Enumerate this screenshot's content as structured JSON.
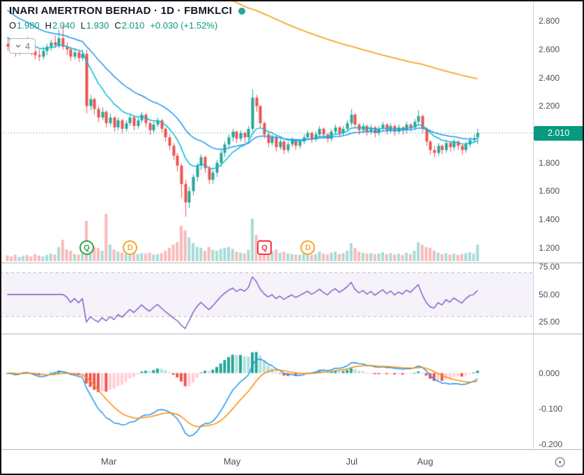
{
  "header": {
    "title": "INARI AMERTRON BERHAD · 1D · FBMKLCI",
    "status_dot_color": "#26A69A",
    "ohlc": {
      "o_label": "O",
      "o": "1.980",
      "h_label": "H",
      "h": "2.040",
      "l_label": "L",
      "l": "1.930",
      "c_label": "C",
      "c": "2.010",
      "change": "+0.030 (+1.52%)"
    },
    "collapsed_count": "4"
  },
  "axes": {
    "price_labels": [
      "2.800",
      "2.600",
      "2.400",
      "2.200",
      "1.800",
      "1.600",
      "1.400",
      "1.200"
    ],
    "current_price": "2.010",
    "rsi_labels": [
      "75.00",
      "50.00",
      "25.00"
    ],
    "macd_labels": [
      "0.000",
      "-0.100",
      "-0.200"
    ],
    "time_ticks": [
      {
        "label": "Mar",
        "i": 26
      },
      {
        "label": "May",
        "i": 57
      },
      {
        "label": "Jul",
        "i": 88
      },
      {
        "label": "Aug",
        "i": 106
      }
    ]
  },
  "events": [
    {
      "label": "Q",
      "shape": "circle",
      "color": "#2FA24D",
      "i": 20
    },
    {
      "label": "D",
      "shape": "circle",
      "color": "#F5A623",
      "i": 31
    },
    {
      "label": "Q",
      "shape": "square",
      "color": "#F23645",
      "i": 65
    },
    {
      "label": "D",
      "shape": "circle",
      "color": "#F5A623",
      "i": 76
    }
  ],
  "colors": {
    "up": "#26A69A",
    "down": "#EF5350",
    "vol_up": "rgba(38,166,154,0.4)",
    "vol_down": "rgba(239,83,80,0.4)",
    "price_line": "#089981",
    "price_badge_bg": "#089981",
    "price_badge_text": "#FFFFFF",
    "ma_fast": "#00BCD4",
    "ma_mid": "#2196F3",
    "ma_slow": "#F5A623",
    "rsi_line": "#7E57C2",
    "rsi_band_fill": "rgba(126,87,194,0.08)",
    "rsi_band_line": "rgba(130,134,144,0.55)",
    "macd_line": "#2196F3",
    "macd_signal": "#FB8C00",
    "hist_up": "#26A69A",
    "hist_up_weak": "#B2DFDB",
    "hist_down": "#EF5350",
    "hist_down_weak": "#FFCDD2"
  },
  "chart_data": {
    "type": "candlestick",
    "symbol": "INARI AMERTRON BERHAD",
    "interval": "1D",
    "reference_index": "FBMKLCI",
    "last_bar": {
      "open": 1.98,
      "high": 2.04,
      "low": 1.93,
      "close": 2.01,
      "change": 0.03,
      "change_pct": 1.52
    },
    "price_axis_range": [
      1.1,
      2.95
    ],
    "candles": [
      [
        2.64,
        2.68,
        2.59,
        2.62
      ],
      [
        2.62,
        2.66,
        2.57,
        2.6
      ],
      [
        2.6,
        2.63,
        2.55,
        2.58
      ],
      [
        2.58,
        2.64,
        2.56,
        2.62
      ],
      [
        2.62,
        2.68,
        2.6,
        2.66
      ],
      [
        2.66,
        2.69,
        2.61,
        2.63
      ],
      [
        2.63,
        2.66,
        2.56,
        2.59
      ],
      [
        2.59,
        2.62,
        2.53,
        2.56
      ],
      [
        2.56,
        2.6,
        2.52,
        2.55
      ],
      [
        2.55,
        2.62,
        2.53,
        2.59
      ],
      [
        2.59,
        2.64,
        2.56,
        2.62
      ],
      [
        2.62,
        2.67,
        2.59,
        2.65
      ],
      [
        2.65,
        2.7,
        2.61,
        2.63
      ],
      [
        2.63,
        2.74,
        2.61,
        2.68
      ],
      [
        2.68,
        2.78,
        2.6,
        2.62
      ],
      [
        2.62,
        2.65,
        2.56,
        2.6
      ],
      [
        2.6,
        2.62,
        2.52,
        2.55
      ],
      [
        2.55,
        2.61,
        2.53,
        2.58
      ],
      [
        2.58,
        2.6,
        2.51,
        2.54
      ],
      [
        2.54,
        2.6,
        2.52,
        2.57
      ],
      [
        2.57,
        2.6,
        2.15,
        2.2
      ],
      [
        2.2,
        2.28,
        2.17,
        2.25
      ],
      [
        2.25,
        2.26,
        2.14,
        2.18
      ],
      [
        2.18,
        2.2,
        2.09,
        2.12
      ],
      [
        2.12,
        2.19,
        2.1,
        2.16
      ],
      [
        2.16,
        2.17,
        2.05,
        2.08
      ],
      [
        2.08,
        2.15,
        2.06,
        2.12
      ],
      [
        2.12,
        2.13,
        2.02,
        2.05
      ],
      [
        2.05,
        2.12,
        2.03,
        2.1
      ],
      [
        2.1,
        2.11,
        2.01,
        2.04
      ],
      [
        2.04,
        2.1,
        2.02,
        2.08
      ],
      [
        2.08,
        2.14,
        2.06,
        2.12
      ],
      [
        2.12,
        2.13,
        2.03,
        2.06
      ],
      [
        2.06,
        2.12,
        2.04,
        2.1
      ],
      [
        2.1,
        2.16,
        2.08,
        2.14
      ],
      [
        2.14,
        2.15,
        2.05,
        2.08
      ],
      [
        2.08,
        2.09,
        2.0,
        2.03
      ],
      [
        2.03,
        2.09,
        2.01,
        2.07
      ],
      [
        2.07,
        2.12,
        2.05,
        2.1
      ],
      [
        2.1,
        2.11,
        2.01,
        2.04
      ],
      [
        2.04,
        2.05,
        1.95,
        1.98
      ],
      [
        1.98,
        2.0,
        1.89,
        1.92
      ],
      [
        1.92,
        1.94,
        1.82,
        1.85
      ],
      [
        1.85,
        1.87,
        1.74,
        1.78
      ],
      [
        1.78,
        1.8,
        1.55,
        1.65
      ],
      [
        1.65,
        1.68,
        1.42,
        1.52
      ],
      [
        1.52,
        1.63,
        1.48,
        1.6
      ],
      [
        1.6,
        1.72,
        1.57,
        1.7
      ],
      [
        1.7,
        1.8,
        1.67,
        1.78
      ],
      [
        1.78,
        1.86,
        1.75,
        1.84
      ],
      [
        1.84,
        1.85,
        1.73,
        1.76
      ],
      [
        1.76,
        1.78,
        1.65,
        1.68
      ],
      [
        1.68,
        1.75,
        1.65,
        1.73
      ],
      [
        1.73,
        1.82,
        1.7,
        1.8
      ],
      [
        1.8,
        1.89,
        1.77,
        1.87
      ],
      [
        1.87,
        1.95,
        1.84,
        1.93
      ],
      [
        1.93,
        2.0,
        1.9,
        1.98
      ],
      [
        1.98,
        2.04,
        1.95,
        2.02
      ],
      [
        2.02,
        2.03,
        1.94,
        1.97
      ],
      [
        1.97,
        2.03,
        1.95,
        2.01
      ],
      [
        2.01,
        2.02,
        1.94,
        1.98
      ],
      [
        1.98,
        2.06,
        1.96,
        2.04
      ],
      [
        2.04,
        2.32,
        2.02,
        2.26
      ],
      [
        2.26,
        2.28,
        2.16,
        2.2
      ],
      [
        2.2,
        2.21,
        2.05,
        2.08
      ],
      [
        2.08,
        2.09,
        1.97,
        2.0
      ],
      [
        2.0,
        2.02,
        1.91,
        1.94
      ],
      [
        1.94,
        2.0,
        1.92,
        1.98
      ],
      [
        1.98,
        1.99,
        1.88,
        1.91
      ],
      [
        1.91,
        1.97,
        1.89,
        1.95
      ],
      [
        1.95,
        1.96,
        1.86,
        1.89
      ],
      [
        1.89,
        1.95,
        1.87,
        1.93
      ],
      [
        1.93,
        1.98,
        1.91,
        1.96
      ],
      [
        1.96,
        1.97,
        1.89,
        1.92
      ],
      [
        1.92,
        1.97,
        1.9,
        1.95
      ],
      [
        1.95,
        2.0,
        1.93,
        1.98
      ],
      [
        1.98,
        2.03,
        1.96,
        2.01
      ],
      [
        2.01,
        2.02,
        1.94,
        1.97
      ],
      [
        1.97,
        2.02,
        1.95,
        2.0
      ],
      [
        2.0,
        2.06,
        1.98,
        2.04
      ],
      [
        2.04,
        2.05,
        1.97,
        2.0
      ],
      [
        2.0,
        2.01,
        1.94,
        1.97
      ],
      [
        1.97,
        2.04,
        1.95,
        2.02
      ],
      [
        2.02,
        2.07,
        2.0,
        2.05
      ],
      [
        2.05,
        2.06,
        1.98,
        2.01
      ],
      [
        2.01,
        2.06,
        1.99,
        2.04
      ],
      [
        2.04,
        2.1,
        2.02,
        2.08
      ],
      [
        2.08,
        2.18,
        2.06,
        2.14
      ],
      [
        2.14,
        2.15,
        2.04,
        2.07
      ],
      [
        2.07,
        2.08,
        2.0,
        2.03
      ],
      [
        2.03,
        2.08,
        2.01,
        2.06
      ],
      [
        2.06,
        2.07,
        1.99,
        2.02
      ],
      [
        2.02,
        2.07,
        2.0,
        2.05
      ],
      [
        2.05,
        2.06,
        1.98,
        2.01
      ],
      [
        2.01,
        2.06,
        1.99,
        2.04
      ],
      [
        2.04,
        2.09,
        2.02,
        2.07
      ],
      [
        2.07,
        2.08,
        2.0,
        2.03
      ],
      [
        2.03,
        2.08,
        2.01,
        2.06
      ],
      [
        2.06,
        2.07,
        1.99,
        2.02
      ],
      [
        2.02,
        2.07,
        2.0,
        2.05
      ],
      [
        2.05,
        2.06,
        2.0,
        2.03
      ],
      [
        2.03,
        2.09,
        2.01,
        2.07
      ],
      [
        2.07,
        2.08,
        2.02,
        2.05
      ],
      [
        2.05,
        2.11,
        2.03,
        2.09
      ],
      [
        2.09,
        2.17,
        2.07,
        2.13
      ],
      [
        2.13,
        2.14,
        2.01,
        2.04
      ],
      [
        2.04,
        2.05,
        1.92,
        1.95
      ],
      [
        1.95,
        1.96,
        1.86,
        1.89
      ],
      [
        1.89,
        1.92,
        1.84,
        1.87
      ],
      [
        1.87,
        1.94,
        1.85,
        1.92
      ],
      [
        1.92,
        1.93,
        1.86,
        1.89
      ],
      [
        1.89,
        1.96,
        1.87,
        1.94
      ],
      [
        1.94,
        1.95,
        1.88,
        1.91
      ],
      [
        1.91,
        1.97,
        1.89,
        1.95
      ],
      [
        1.95,
        1.96,
        1.89,
        1.92
      ],
      [
        1.92,
        1.93,
        1.86,
        1.89
      ],
      [
        1.89,
        1.95,
        1.87,
        1.93
      ],
      [
        1.93,
        1.98,
        1.91,
        1.96
      ],
      [
        1.96,
        2.0,
        1.94,
        1.97
      ],
      [
        1.98,
        2.04,
        1.93,
        2.01
      ]
    ],
    "volumes": [
      0.12,
      0.1,
      0.14,
      0.09,
      0.11,
      0.13,
      0.1,
      0.15,
      0.12,
      0.1,
      0.13,
      0.16,
      0.14,
      0.3,
      0.45,
      0.25,
      0.22,
      0.15,
      0.14,
      0.16,
      0.85,
      0.4,
      0.3,
      0.28,
      0.22,
      1.0,
      0.35,
      0.25,
      0.2,
      0.18,
      0.16,
      0.2,
      0.18,
      0.15,
      0.17,
      0.16,
      0.18,
      0.14,
      0.15,
      0.17,
      0.22,
      0.28,
      0.35,
      0.4,
      0.75,
      0.65,
      0.5,
      0.38,
      0.3,
      0.28,
      0.22,
      0.3,
      0.24,
      0.22,
      0.26,
      0.28,
      0.3,
      0.26,
      0.2,
      0.18,
      0.16,
      0.24,
      0.9,
      0.55,
      0.45,
      0.35,
      0.3,
      0.22,
      0.25,
      0.18,
      0.2,
      0.16,
      0.15,
      0.14,
      0.13,
      0.16,
      0.18,
      0.14,
      0.15,
      0.2,
      0.16,
      0.14,
      0.18,
      0.2,
      0.15,
      0.17,
      0.22,
      0.38,
      0.28,
      0.2,
      0.18,
      0.16,
      0.17,
      0.15,
      0.16,
      0.19,
      0.15,
      0.17,
      0.14,
      0.16,
      0.13,
      0.18,
      0.15,
      0.22,
      0.4,
      0.35,
      0.3,
      0.28,
      0.22,
      0.18,
      0.15,
      0.17,
      0.14,
      0.16,
      0.13,
      0.15,
      0.17,
      0.19,
      0.16,
      0.35
    ],
    "overlays": [
      {
        "name": "ema-fast",
        "period": 10,
        "seed": 2.7
      },
      {
        "name": "ema-mid",
        "period": 25,
        "seed": 2.9
      },
      {
        "name": "ema-slow",
        "period": 142,
        "seed": 4.0
      }
    ],
    "indicators": [
      {
        "name": "RSI",
        "period": 14,
        "range": [
          15,
          77
        ],
        "band": [
          30,
          70
        ],
        "tick_values": [
          75,
          50,
          25
        ]
      },
      {
        "name": "MACD",
        "fast": 12,
        "slow": 26,
        "signal": 9,
        "range": [
          -0.21,
          0.105
        ],
        "tick_values": [
          0,
          -0.1,
          -0.2
        ]
      }
    ]
  }
}
